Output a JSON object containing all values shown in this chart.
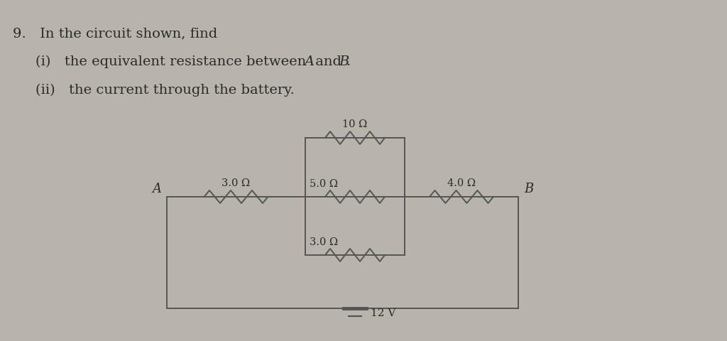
{
  "bg_color": "#b8b4ac",
  "text_color": "#2a2a2a",
  "wire_color": "#555555",
  "font_size_main": 14,
  "font_size_resistor": 10.5,
  "font_size_node": 13,
  "font_size_battery": 11,
  "resistors": {
    "left_series": "3.0 Ω",
    "top_parallel": "10 Ω",
    "mid_parallel": "5.0 Ω",
    "bot_parallel": "3.0 Ω",
    "right_series": "4.0 Ω"
  },
  "battery_label": "12 V",
  "node_A": "A",
  "node_B": "B",
  "line1": "9. In the circuit shown, find",
  "line2_pre": "(i) the equivalent resistance between ",
  "line2_A": "A",
  "line2_mid": " and ",
  "line2_B": "B",
  "line2_post": ".",
  "line3": "(ii) the current through the battery."
}
